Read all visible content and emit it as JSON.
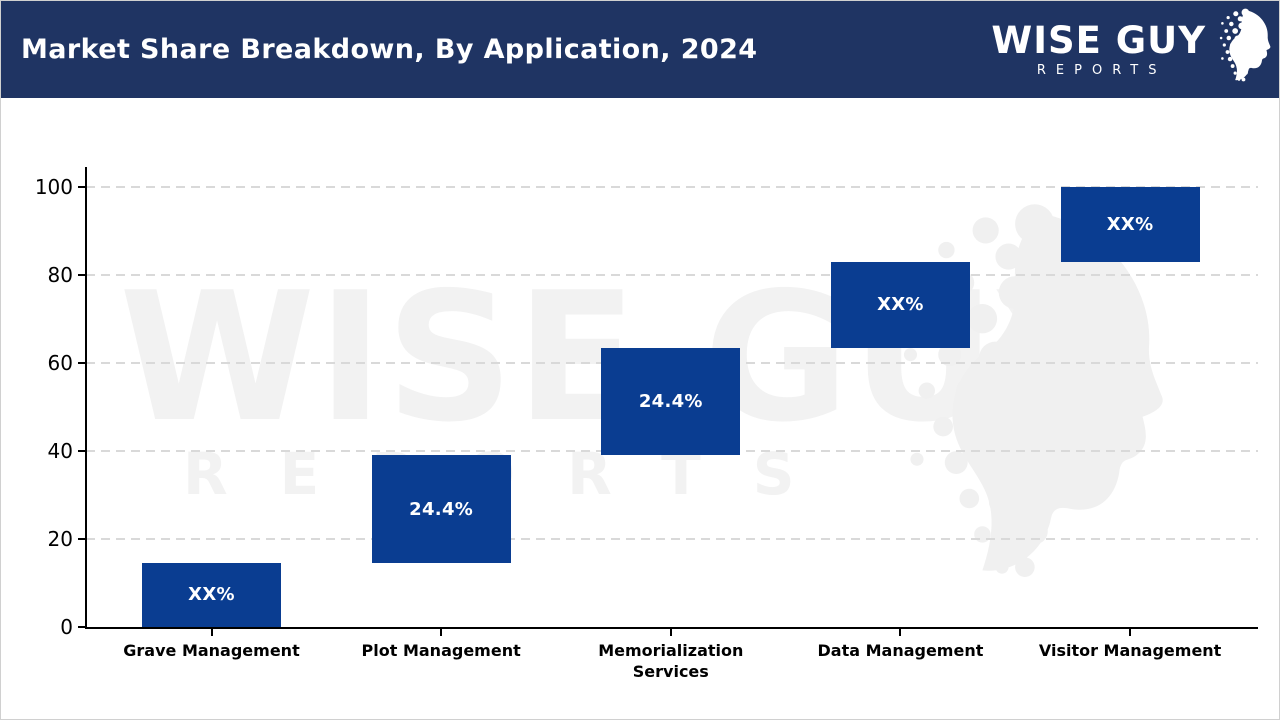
{
  "header": {
    "title": "Market Share Breakdown, By Application, 2024",
    "logo": {
      "line1": "WISE GUY",
      "line2": "REPORTS"
    }
  },
  "watermark": {
    "line1": "WISE GUY",
    "line2": "REPORTS"
  },
  "colors": {
    "header_bg": "#1f3463",
    "bar_blue": "#0a3d91",
    "gridline_gray": "#d9d9d9",
    "watermark_gray": "#f2f2f2",
    "axis_black": "#000000"
  },
  "chart_data": {
    "type": "bar",
    "subtype": "waterfall-floating-bars",
    "title": "Market Share Breakdown, By Application, 2024",
    "categories": [
      "Grave Management",
      "Plot Management",
      "Memorialization Services",
      "Data Management",
      "Visitor Management"
    ],
    "xtick_labels": [
      "Grave Management",
      "Plot Management",
      "Memorialization\nServices",
      "Data Management",
      "Visitor Management"
    ],
    "bars": [
      {
        "category": "Grave Management",
        "start": 0,
        "end": 14.6,
        "label": "XX%"
      },
      {
        "category": "Plot Management",
        "start": 14.6,
        "end": 39.0,
        "label": "24.4%"
      },
      {
        "category": "Memorialization Services",
        "start": 39.0,
        "end": 63.4,
        "label": "24.4%"
      },
      {
        "category": "Data Management",
        "start": 63.4,
        "end": 83.0,
        "label": "XX%"
      },
      {
        "category": "Visitor Management",
        "start": 83.0,
        "end": 100.0,
        "label": "XX%"
      }
    ],
    "segment_values": [
      14.6,
      24.4,
      24.4,
      19.6,
      17.0
    ],
    "xlabel": "",
    "ylabel": "",
    "ylim": [
      0,
      100
    ],
    "yticks": [
      0,
      20,
      40,
      60,
      80,
      100
    ],
    "grid": true,
    "grid_style": "dashed-horizontal",
    "gridline_color": "#d9d9d9",
    "bar_color": "#0a3d91",
    "legend": "none"
  }
}
